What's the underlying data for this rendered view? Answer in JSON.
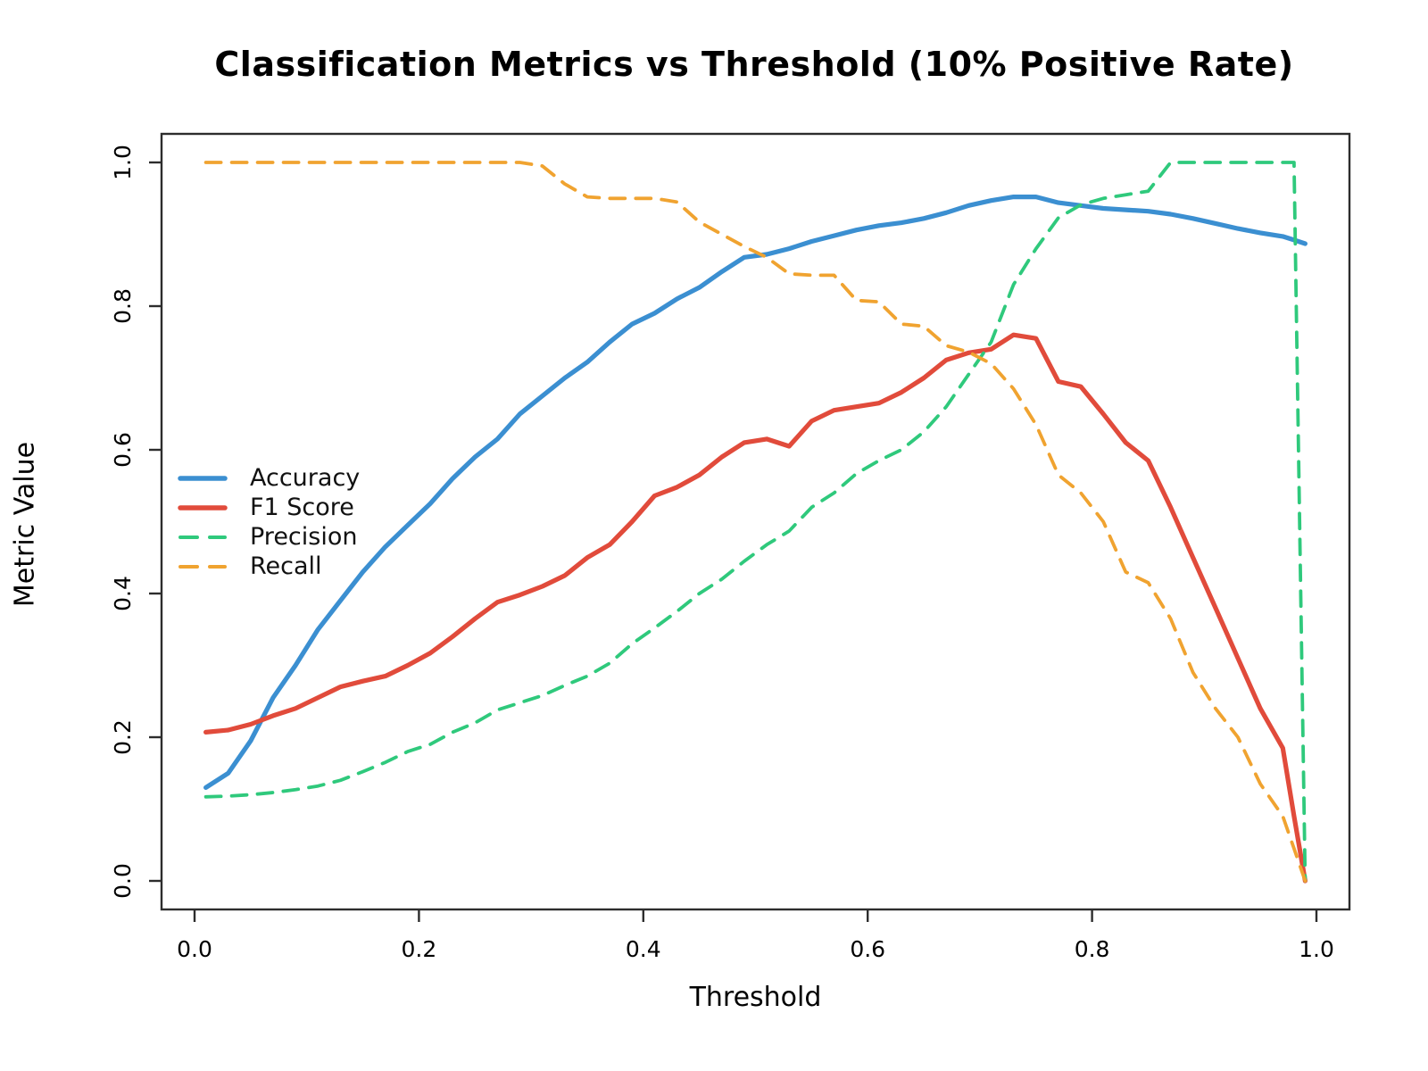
{
  "chart_data": {
    "type": "line",
    "title": "Classification Metrics vs Threshold (10% Positive Rate)",
    "xlabel": "Threshold",
    "ylabel": "Metric Value",
    "xlim": [
      0.0,
      1.0
    ],
    "ylim": [
      0.0,
      1.0
    ],
    "grid": false,
    "legend_position": "left-middle",
    "x_ticks": [
      {
        "value": 0.0,
        "label": "0.0"
      },
      {
        "value": 0.2,
        "label": "0.2"
      },
      {
        "value": 0.4,
        "label": "0.4"
      },
      {
        "value": 0.6,
        "label": "0.6"
      },
      {
        "value": 0.8,
        "label": "0.8"
      },
      {
        "value": 1.0,
        "label": "1.0"
      }
    ],
    "y_ticks": [
      {
        "value": 0.0,
        "label": "0.0"
      },
      {
        "value": 0.2,
        "label": "0.2"
      },
      {
        "value": 0.4,
        "label": "0.4"
      },
      {
        "value": 0.6,
        "label": "0.6"
      },
      {
        "value": 0.8,
        "label": "0.8"
      },
      {
        "value": 1.0,
        "label": "1.0"
      }
    ],
    "x": [
      0.01,
      0.03,
      0.05,
      0.07,
      0.09,
      0.11,
      0.13,
      0.15,
      0.17,
      0.19,
      0.21,
      0.23,
      0.25,
      0.27,
      0.29,
      0.31,
      0.33,
      0.35,
      0.37,
      0.39,
      0.41,
      0.43,
      0.45,
      0.47,
      0.49,
      0.51,
      0.53,
      0.55,
      0.57,
      0.59,
      0.61,
      0.63,
      0.65,
      0.67,
      0.69,
      0.71,
      0.73,
      0.75,
      0.77,
      0.79,
      0.81,
      0.83,
      0.85,
      0.87,
      0.89,
      0.91,
      0.93,
      0.95,
      0.97,
      0.98,
      0.99
    ],
    "series": [
      {
        "name": "Accuracy",
        "color": "#3B8FD1",
        "style": "solid",
        "line_width": 5.2,
        "values": [
          0.13,
          0.15,
          0.195,
          0.255,
          0.3,
          0.35,
          0.39,
          0.43,
          0.465,
          0.495,
          0.525,
          0.56,
          0.59,
          0.615,
          0.65,
          0.675,
          0.7,
          0.722,
          0.75,
          0.775,
          0.79,
          0.81,
          0.826,
          0.848,
          0.868,
          0.872,
          0.88,
          0.89,
          0.898,
          0.906,
          0.912,
          0.916,
          0.922,
          0.93,
          0.94,
          0.947,
          0.952,
          0.952,
          0.944,
          0.94,
          0.936,
          0.934,
          0.932,
          0.928,
          0.922,
          0.915,
          0.908,
          0.902,
          0.897,
          0.892,
          0.887
        ]
      },
      {
        "name": "F1 Score",
        "color": "#E14B3B",
        "style": "solid",
        "line_width": 5.2,
        "values": [
          0.207,
          0.21,
          0.218,
          0.23,
          0.24,
          0.255,
          0.27,
          0.278,
          0.285,
          0.3,
          0.317,
          0.34,
          0.365,
          0.388,
          0.398,
          0.41,
          0.425,
          0.45,
          0.468,
          0.5,
          0.536,
          0.548,
          0.565,
          0.59,
          0.61,
          0.615,
          0.605,
          0.64,
          0.655,
          0.66,
          0.665,
          0.68,
          0.7,
          0.725,
          0.735,
          0.74,
          0.76,
          0.755,
          0.695,
          0.688,
          0.65,
          0.61,
          0.585,
          0.52,
          0.45,
          0.38,
          0.31,
          0.24,
          0.185,
          0.09,
          0.0
        ]
      },
      {
        "name": "Precision",
        "color": "#2FC97C",
        "style": "dashed",
        "line_width": 3.8,
        "values": [
          0.117,
          0.118,
          0.12,
          0.123,
          0.127,
          0.132,
          0.14,
          0.152,
          0.165,
          0.18,
          0.19,
          0.207,
          0.22,
          0.238,
          0.248,
          0.258,
          0.272,
          0.285,
          0.303,
          0.33,
          0.352,
          0.375,
          0.4,
          0.42,
          0.445,
          0.468,
          0.487,
          0.52,
          0.54,
          0.567,
          0.585,
          0.6,
          0.625,
          0.66,
          0.705,
          0.75,
          0.83,
          0.88,
          0.923,
          0.941,
          0.95,
          0.955,
          0.96,
          1.0,
          1.0,
          1.0,
          1.0,
          1.0,
          1.0,
          1.0,
          0.0
        ]
      },
      {
        "name": "Recall",
        "color": "#F0A330",
        "style": "dashed",
        "line_width": 3.8,
        "values": [
          1.0,
          1.0,
          1.0,
          1.0,
          1.0,
          1.0,
          1.0,
          1.0,
          1.0,
          1.0,
          1.0,
          1.0,
          1.0,
          1.0,
          1.0,
          0.995,
          0.97,
          0.952,
          0.95,
          0.95,
          0.95,
          0.945,
          0.917,
          0.9,
          0.883,
          0.868,
          0.845,
          0.843,
          0.843,
          0.808,
          0.806,
          0.775,
          0.772,
          0.745,
          0.736,
          0.72,
          0.685,
          0.635,
          0.565,
          0.54,
          0.5,
          0.43,
          0.415,
          0.365,
          0.29,
          0.24,
          0.2,
          0.135,
          0.09,
          0.045,
          0.0
        ]
      }
    ]
  },
  "legend": {
    "items": [
      "Accuracy",
      "F1 Score",
      "Precision",
      "Recall"
    ]
  }
}
